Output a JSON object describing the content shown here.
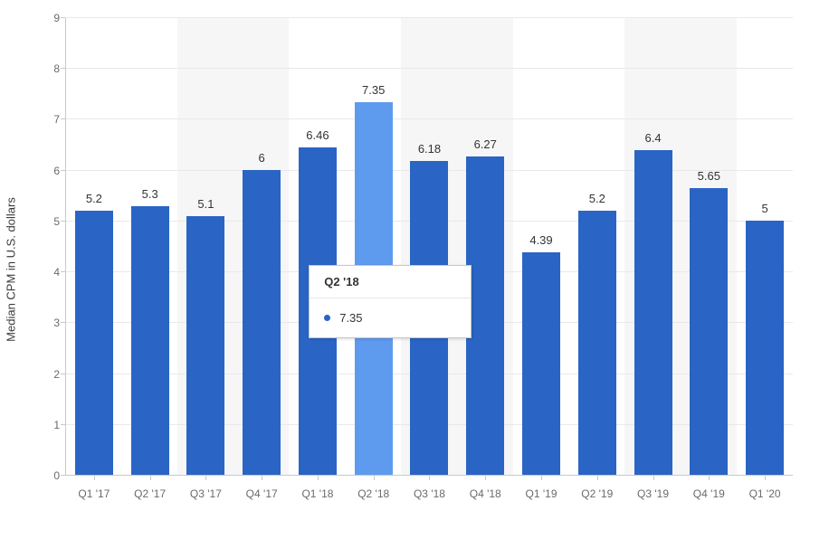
{
  "chart": {
    "type": "bar",
    "y_axis_label": "Median CPM in U.S. dollars",
    "ylim": [
      0,
      9
    ],
    "ytick_step": 1,
    "categories": [
      "Q1 '17",
      "Q2 '17",
      "Q3 '17",
      "Q4 '17",
      "Q1 '18",
      "Q2 '18",
      "Q3 '18",
      "Q4 '18",
      "Q1 '19",
      "Q2 '19",
      "Q3 '19",
      "Q4 '19",
      "Q1 '20"
    ],
    "values": [
      5.2,
      5.3,
      5.1,
      6,
      6.46,
      7.35,
      6.18,
      6.27,
      4.39,
      5.2,
      6.4,
      5.65,
      5
    ],
    "value_labels": [
      "5.2",
      "5.3",
      "5.1",
      "6",
      "6.46",
      "7.35",
      "6.18",
      "6.27",
      "4.39",
      "5.2",
      "6.4",
      "5.65",
      "5"
    ],
    "bar_color": "#2a64c5",
    "highlight_index": 5,
    "highlight_color": "#5e9bef",
    "stripe_color": "#f6f6f6",
    "grid_color": "#e9e9e9",
    "axis_line_color": "#c9c9c9",
    "background_color": "#ffffff",
    "bar_width_ratio": 0.68,
    "label_fontsize": 13,
    "tick_fontsize": 12,
    "tick_color": "#6a6a6a",
    "axis_label_color": "#3a3a3a",
    "value_label_color": "#333333"
  },
  "tooltip": {
    "title": "Q2 '18",
    "value": "7.35",
    "dot_color": "#2a64c5",
    "border_color": "#c9c9c9",
    "bg_color": "#ffffff"
  }
}
